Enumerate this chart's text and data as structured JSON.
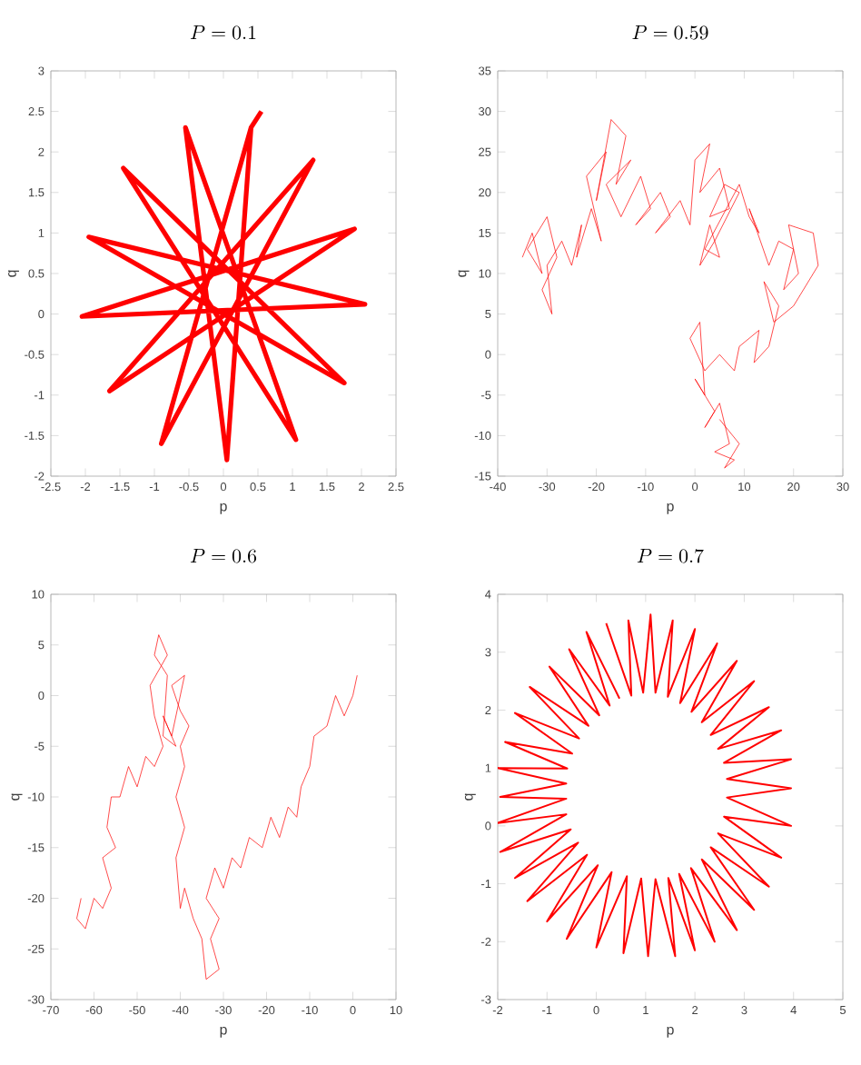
{
  "chart_data": [
    {
      "type": "line",
      "title": "P = 0.1",
      "xlabel": "p",
      "ylabel": "q",
      "color": "#ff0000",
      "xlim": [
        -2.5,
        2.5
      ],
      "ylim": [
        -2,
        3
      ],
      "xticks": [
        -2.5,
        -2,
        -1.5,
        -1,
        -0.5,
        0,
        0.5,
        1,
        1.5,
        2,
        2.5
      ],
      "yticks": [
        -2,
        -1.5,
        -1,
        -0.5,
        0,
        0.5,
        1,
        1.5,
        2,
        2.5,
        3
      ],
      "x": [
        0.55,
        0.4,
        0.05,
        -0.55,
        1.05,
        -1.45,
        1.75,
        -1.95,
        2.05,
        -2.05,
        1.9,
        -1.65,
        1.3,
        -0.9,
        0.4
      ],
      "values": [
        2.5,
        2.3,
        -1.8,
        2.3,
        -1.55,
        1.8,
        -0.85,
        0.95,
        0.12,
        -0.03,
        1.05,
        -0.95,
        1.9,
        -1.6,
        2.3
      ]
    },
    {
      "type": "line",
      "title": "P = 0.59",
      "xlabel": "p",
      "ylabel": "q",
      "color": "#ff0000",
      "xlim": [
        -40,
        30
      ],
      "ylim": [
        -15,
        35
      ],
      "xticks": [
        -40,
        -30,
        -20,
        -10,
        0,
        10,
        20,
        30
      ],
      "yticks": [
        -15,
        -10,
        -5,
        0,
        5,
        10,
        15,
        20,
        25,
        30,
        35
      ],
      "x": [
        -35,
        -33,
        -31,
        -34,
        -30,
        -28,
        -31,
        -29,
        -30,
        -27,
        -25,
        -23,
        -24,
        -21,
        -19,
        -22,
        -18,
        -20,
        -17,
        -14,
        -16,
        -13,
        -18,
        -15,
        -11,
        -9,
        -12,
        -7,
        -5,
        -8,
        -3,
        -1,
        0,
        3,
        1,
        5,
        7,
        3,
        6,
        9,
        4,
        1,
        3,
        5,
        2,
        9,
        11,
        13,
        11,
        15,
        17,
        20,
        18,
        21,
        19,
        24,
        25,
        20,
        16,
        14,
        17,
        15,
        12,
        13,
        9,
        8,
        5,
        2,
        -1,
        1,
        2,
        0,
        4,
        2,
        5,
        7,
        4,
        8,
        6,
        9,
        5
      ],
      "values": [
        12,
        15,
        10,
        13,
        17,
        12,
        8,
        5,
        11,
        14,
        11,
        16,
        12,
        18,
        14,
        22,
        25,
        19,
        29,
        27,
        21,
        24,
        21,
        17,
        22,
        18,
        16,
        20,
        17,
        15,
        19,
        16,
        24,
        26,
        20,
        23,
        18,
        17,
        21,
        20,
        14,
        11,
        16,
        12,
        13,
        21,
        17,
        15,
        18,
        11,
        14,
        13,
        8,
        10,
        16,
        15,
        11,
        6,
        4,
        9,
        6,
        1,
        -1,
        3,
        1,
        -2,
        0,
        -2,
        2,
        4,
        -5,
        -3,
        -7,
        -9,
        -6,
        -11,
        -12,
        -13,
        -14,
        -11,
        -8
      ]
    },
    {
      "type": "line",
      "title": "P = 0.6",
      "xlabel": "p",
      "ylabel": "q",
      "color": "#ff0000",
      "xlim": [
        -70,
        10
      ],
      "ylim": [
        -30,
        10
      ],
      "xticks": [
        -70,
        -60,
        -50,
        -40,
        -30,
        -20,
        -10,
        0,
        10
      ],
      "yticks": [
        -30,
        -25,
        -20,
        -15,
        -10,
        -5,
        0,
        5,
        10
      ],
      "x": [
        1,
        0,
        -2,
        -4,
        -6,
        -9,
        -10,
        -12,
        -13,
        -15,
        -17,
        -19,
        -21,
        -24,
        -26,
        -28,
        -30,
        -32,
        -34,
        -31,
        -33,
        -31,
        -34,
        -35,
        -37,
        -39,
        -40,
        -41,
        -39,
        -41,
        -39,
        -40,
        -38,
        -40,
        -42,
        -39,
        -42,
        -44,
        -41,
        -44,
        -43,
        -46,
        -45,
        -43,
        -47,
        -46,
        -44,
        -46,
        -48,
        -50,
        -52,
        -54,
        -56,
        -57,
        -55,
        -58,
        -56,
        -58,
        -60,
        -62,
        -64,
        -63
      ],
      "values": [
        2,
        0,
        -2,
        0,
        -3,
        -4,
        -7,
        -9,
        -12,
        -11,
        -14,
        -12,
        -15,
        -14,
        -17,
        -16,
        -19,
        -17,
        -20,
        -22,
        -24,
        -27,
        -28,
        -24,
        -22,
        -19,
        -21,
        -16,
        -13,
        -10,
        -7,
        -5,
        -3,
        -1.5,
        1,
        2,
        -4,
        -2,
        -5,
        -4,
        2,
        4,
        6,
        4,
        1,
        -2,
        -5,
        -7,
        -6,
        -9,
        -7,
        -10,
        -10,
        -13,
        -15,
        -16,
        -19,
        -21,
        -20,
        -23,
        -22,
        -20
      ]
    },
    {
      "type": "line",
      "title": "P = 0.7",
      "xlabel": "p",
      "ylabel": "q",
      "color": "#ff0000",
      "xlim": [
        -2,
        5
      ],
      "ylim": [
        -3,
        4
      ],
      "xticks": [
        -2,
        -1,
        0,
        1,
        2,
        3,
        4,
        5
      ],
      "yticks": [
        -3,
        -2,
        -1,
        0,
        1,
        2,
        3,
        4
      ],
      "x": [
        0.2,
        0.71,
        0.65,
        0.95,
        1.1,
        1.2,
        1.55,
        1.45,
        2.0,
        1.7,
        2.45,
        1.93,
        2.85,
        2.14,
        3.2,
        2.32,
        3.5,
        2.47,
        3.75,
        2.59,
        3.95,
        2.65,
        3.95,
        2.65,
        3.95,
        2.59,
        3.75,
        2.47,
        3.5,
        2.32,
        3.2,
        2.14,
        2.85,
        1.92,
        2.4,
        1.68,
        2.0,
        1.46,
        1.6,
        1.2,
        1.05,
        0.91,
        0.55,
        0.62,
        0.0,
        0.31,
        -0.6,
        0.03,
        -1.0,
        -0.19,
        -1.4,
        -0.37,
        -1.65,
        -0.52,
        -1.95,
        -0.61,
        -2.0,
        -0.61,
        -1.95,
        -0.61,
        -2.0,
        -0.59,
        -1.85,
        -0.49,
        -1.65,
        -0.35,
        -1.35,
        -0.16,
        -0.95,
        0.06,
        -0.55,
        0.27,
        -0.2,
        0.47
      ],
      "values": [
        3.5,
        2.25,
        3.55,
        2.3,
        3.65,
        2.3,
        3.55,
        2.23,
        3.4,
        2.12,
        3.15,
        1.97,
        2.85,
        1.79,
        2.5,
        1.57,
        2.05,
        1.33,
        1.65,
        1.09,
        1.15,
        0.81,
        0.65,
        0.49,
        0.0,
        0.16,
        -0.55,
        -0.13,
        -1.05,
        -0.37,
        -1.45,
        -0.58,
        -1.8,
        -0.73,
        -2.0,
        -0.83,
        -2.15,
        -0.9,
        -2.25,
        -0.92,
        -2.25,
        -0.91,
        -2.2,
        -0.87,
        -2.1,
        -0.8,
        -1.95,
        -0.68,
        -1.65,
        -0.5,
        -1.3,
        -0.29,
        -0.9,
        -0.06,
        -0.45,
        0.2,
        0.05,
        0.47,
        0.5,
        0.73,
        1.0,
        0.99,
        1.45,
        1.25,
        1.95,
        1.51,
        2.4,
        1.73,
        2.75,
        1.91,
        3.05,
        2.08,
        3.35,
        2.2
      ]
    }
  ]
}
